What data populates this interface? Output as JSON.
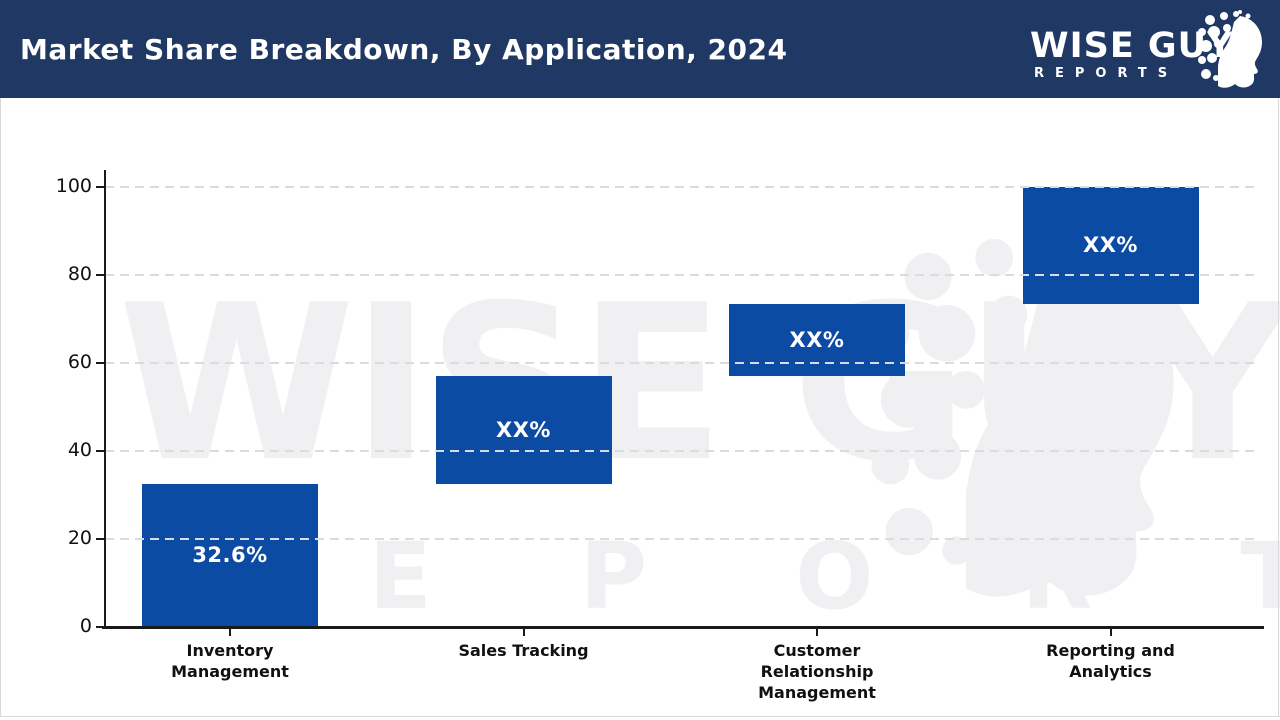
{
  "header": {
    "title": "Market Share Breakdown, By Application, 2024",
    "logo": {
      "line1": "WISE GUY",
      "line2": "REPORTS"
    }
  },
  "watermark": {
    "line1": "WISE GUY",
    "line2": "R E P O R T S"
  },
  "chart_data": {
    "type": "bar",
    "subtype": "waterfall-floating-bars",
    "title": "Market Share Breakdown, By Application, 2024",
    "categories": [
      "Inventory Management",
      "Sales Tracking",
      "Customer Relationship Management",
      "Reporting and Analytics"
    ],
    "category_lines": [
      [
        "Inventory",
        "Management"
      ],
      [
        "Sales Tracking"
      ],
      [
        "Customer",
        "Relationship",
        "Management"
      ],
      [
        "Reporting and",
        "Analytics"
      ]
    ],
    "segments": [
      {
        "label": "32.6%",
        "start": 0,
        "end": 32.6
      },
      {
        "label": "XX%",
        "start": 32.6,
        "end": 57
      },
      {
        "label": "XX%",
        "start": 57,
        "end": 73.5
      },
      {
        "label": "XX%",
        "start": 73.5,
        "end": 100
      }
    ],
    "ylim": [
      0,
      100
    ],
    "yticks": [
      0,
      20,
      40,
      60,
      80,
      100
    ],
    "xlabel": "",
    "ylabel": "",
    "grid": "horizontal-dashed",
    "legend": "none",
    "bar_color": "#0c4ba3",
    "bar_label_color": "#ffffff"
  },
  "colors": {
    "header_bg": "#203864",
    "bar": "#0c4ba3",
    "watermark": "#f0f0f2",
    "gridline": "#dcdcdc",
    "axis": "#1a1a1a",
    "page_border": "#d9d9d9"
  }
}
